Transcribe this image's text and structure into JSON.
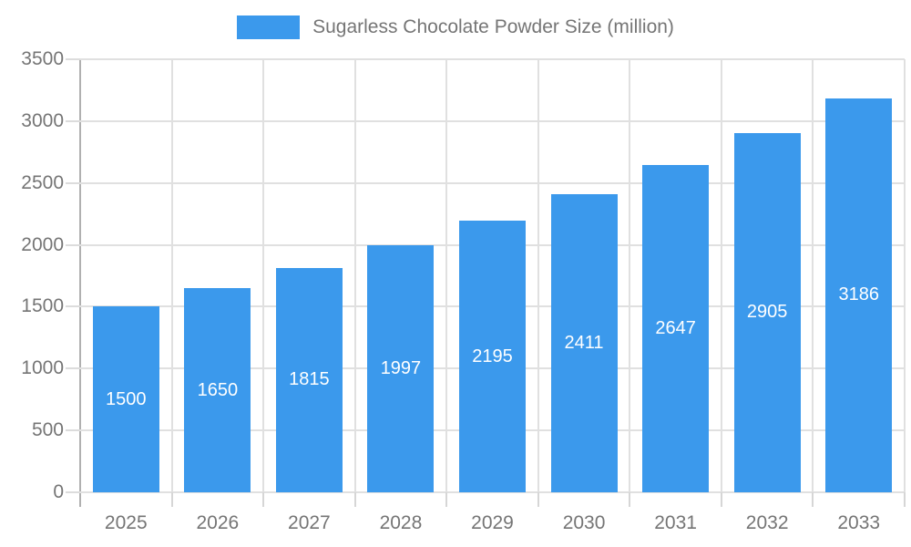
{
  "legend": {
    "label": "Sugarless Chocolate Powder Size (million)"
  },
  "chart_data": {
    "type": "bar",
    "title": "Sugarless Chocolate Powder Size (million)",
    "categories": [
      "2025",
      "2026",
      "2027",
      "2028",
      "2029",
      "2030",
      "2031",
      "2032",
      "2033"
    ],
    "values": [
      1500,
      1650,
      1815,
      1997,
      2195,
      2411,
      2647,
      2905,
      3186
    ],
    "bar_labels": [
      "1500",
      "1650",
      "1815",
      "1997",
      "2195",
      "2411",
      "2647",
      "2905",
      "3186"
    ],
    "xlabel": "",
    "ylabel": "",
    "ylim": [
      0,
      3500
    ],
    "ytick_step": 500,
    "ytick_labels": [
      "0",
      "500",
      "1000",
      "1500",
      "2000",
      "2500",
      "3000",
      "3500"
    ],
    "grid": true,
    "legend_position": "top-center",
    "colors": {
      "bar": "#3B99EC",
      "grid": "#e0e0e0",
      "axis": "#b0b0b0",
      "text": "#757575",
      "bar_label_text": "#ffffff",
      "background": "#ffffff"
    }
  }
}
